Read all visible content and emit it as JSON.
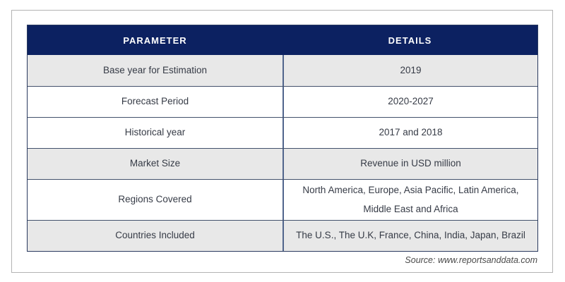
{
  "chart_data": {
    "type": "table",
    "columns": [
      "PARAMETER",
      "DETAILS"
    ],
    "rows": [
      [
        "Base year for Estimation",
        "2019"
      ],
      [
        "Forecast Period",
        "2020-2027"
      ],
      [
        "Historical year",
        "2017 and 2018"
      ],
      [
        "Market Size",
        "Revenue in USD million"
      ],
      [
        "Regions Covered",
        "North America, Europe, Asia Pacific, Latin America, Middle East and Africa"
      ],
      [
        "Countries Included",
        "The U.S., The  U.K, France, China, India, Japan, Brazil"
      ]
    ],
    "shaded_row_indexes": [
      0,
      3,
      5
    ],
    "legend_position": "none"
  },
  "source": {
    "label": "Source: www.reportsanddata.com"
  },
  "colors": {
    "header_bg": "#0c2161",
    "header_text": "#ffffff",
    "row_shaded_bg": "#e8e8e8",
    "row_plain_bg": "#ffffff",
    "cell_text": "#363b46",
    "row_border": "#42506b",
    "column_divider": "#51658c",
    "table_border": "#2a3a5f",
    "card_border": "#b3b3b3",
    "source_text": "#4a4a4a"
  }
}
